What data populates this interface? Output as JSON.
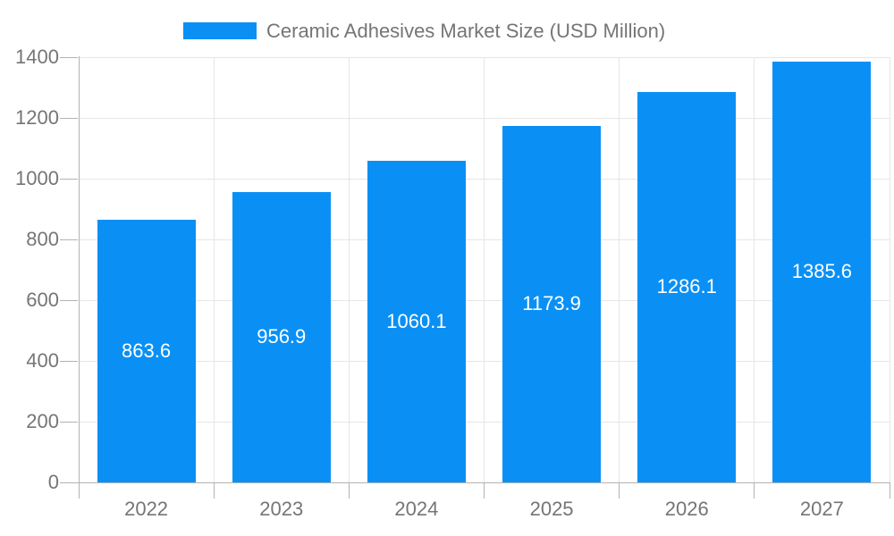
{
  "chart_data": {
    "type": "bar",
    "title": "Ceramic Adhesives Market Size (USD Million)",
    "legend": {
      "position": "top",
      "label": "Ceramic Adhesives Market Size (USD Million)"
    },
    "categories": [
      "2022",
      "2023",
      "2024",
      "2025",
      "2026",
      "2027"
    ],
    "values": [
      863.6,
      956.9,
      1060.1,
      1173.9,
      1286.1,
      1385.6
    ],
    "value_labels": [
      "863.6",
      "956.9",
      "1060.1",
      "1173.9",
      "1286.1",
      "1385.6"
    ],
    "xlabel": "",
    "ylabel": "",
    "ylim": [
      0,
      1400
    ],
    "yticks": [
      0,
      200,
      400,
      600,
      800,
      1000,
      1200,
      1400
    ],
    "grid": true,
    "legend_position": "top",
    "colors": {
      "bar": "#0a90f5",
      "axis_text": "#757575",
      "gridline": "#e6e6e6",
      "axis_line": "#b3b3b3",
      "value_label_text": "#ffffff",
      "background": "#ffffff"
    }
  }
}
